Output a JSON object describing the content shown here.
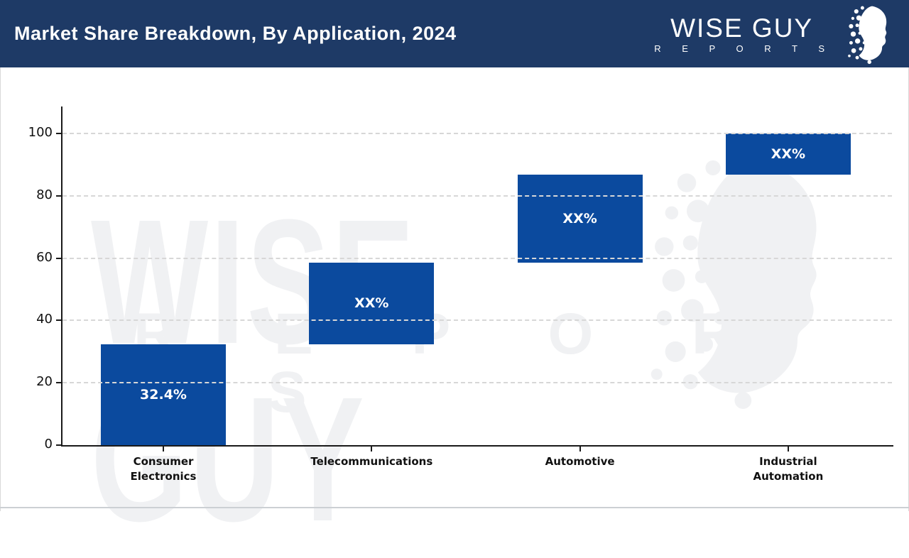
{
  "header": {
    "title": "Market Share Breakdown, By Application, 2024",
    "bg_color": "#1e3a66",
    "logo": {
      "line1": "WISE GUY",
      "line2": "R E P O R T S"
    }
  },
  "watermark": {
    "line1": "WISE GUY",
    "line2": "R E P O R T S"
  },
  "colors": {
    "bar": "#0b4a9e",
    "grid": "#d7d7d7",
    "watermark": "#f0f1f3"
  },
  "chart_data": {
    "type": "bar",
    "subtype": "stacked-breakdown-waterfall",
    "title": "Market Share Breakdown, By Application, 2024",
    "categories": [
      "Consumer Electronics",
      "Telecommunications",
      "Automotive",
      "Industrial Automation"
    ],
    "category_lines": [
      [
        "Consumer",
        "Electronics"
      ],
      [
        "Telecommunications"
      ],
      [
        "Automotive"
      ],
      [
        "Industrial",
        "Automation"
      ]
    ],
    "segments": [
      {
        "category": "Consumer Electronics",
        "start": 0,
        "end": 32.4,
        "label": "32.4%",
        "estimated_value": 32.4
      },
      {
        "category": "Telecommunications",
        "start": 32.4,
        "end": 58.5,
        "label": "XX%",
        "estimated_value": 26.1
      },
      {
        "category": "Automotive",
        "start": 58.5,
        "end": 86.9,
        "label": "XX%",
        "estimated_value": 28.4
      },
      {
        "category": "Industrial Automation",
        "start": 86.9,
        "end": 100,
        "label": "XX%",
        "estimated_value": 13.1
      }
    ],
    "xlabel": "",
    "ylabel": "",
    "ylim": [
      0,
      100
    ],
    "yticks": [
      0,
      20,
      40,
      60,
      80,
      100
    ],
    "grid": "horizontal dashed, drawn over bars",
    "legend": "none",
    "bar_color": "#0b4a9e"
  }
}
